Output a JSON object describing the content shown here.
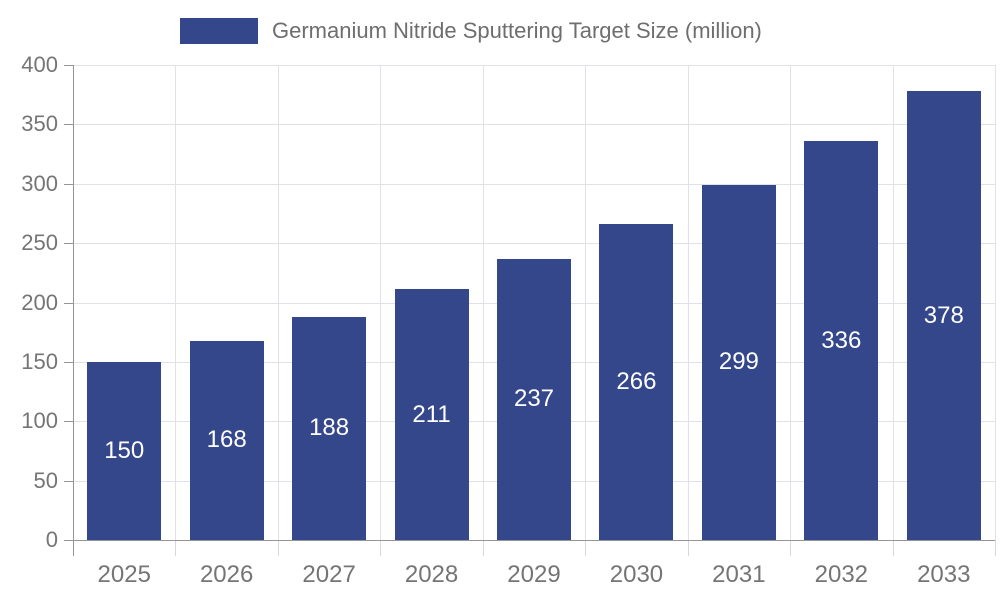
{
  "legend": {
    "label": "Germanium Nitride Sputtering Target Size (million)"
  },
  "chart_data": {
    "type": "bar",
    "title": "Germanium Nitride Sputtering Target Size (million)",
    "categories": [
      "2025",
      "2026",
      "2027",
      "2028",
      "2029",
      "2030",
      "2031",
      "2032",
      "2033"
    ],
    "values": [
      150,
      168,
      188,
      211,
      237,
      266,
      299,
      336,
      378
    ],
    "xlabel": "",
    "ylabel": "",
    "ylim": [
      0,
      400
    ],
    "ytick_step": 50,
    "yticks": [
      0,
      50,
      100,
      150,
      200,
      250,
      300,
      350,
      400
    ],
    "grid": true,
    "legend_position": "top",
    "value_labels": "inside-center",
    "colors": {
      "bar": "#35478b",
      "bar_value_text": "#ffffff",
      "axis_line": "#959595",
      "tick_label": "#757575",
      "legend_text": "#6e6e6e",
      "gridline": "#e1e1e8",
      "background": "#ffffff"
    }
  }
}
